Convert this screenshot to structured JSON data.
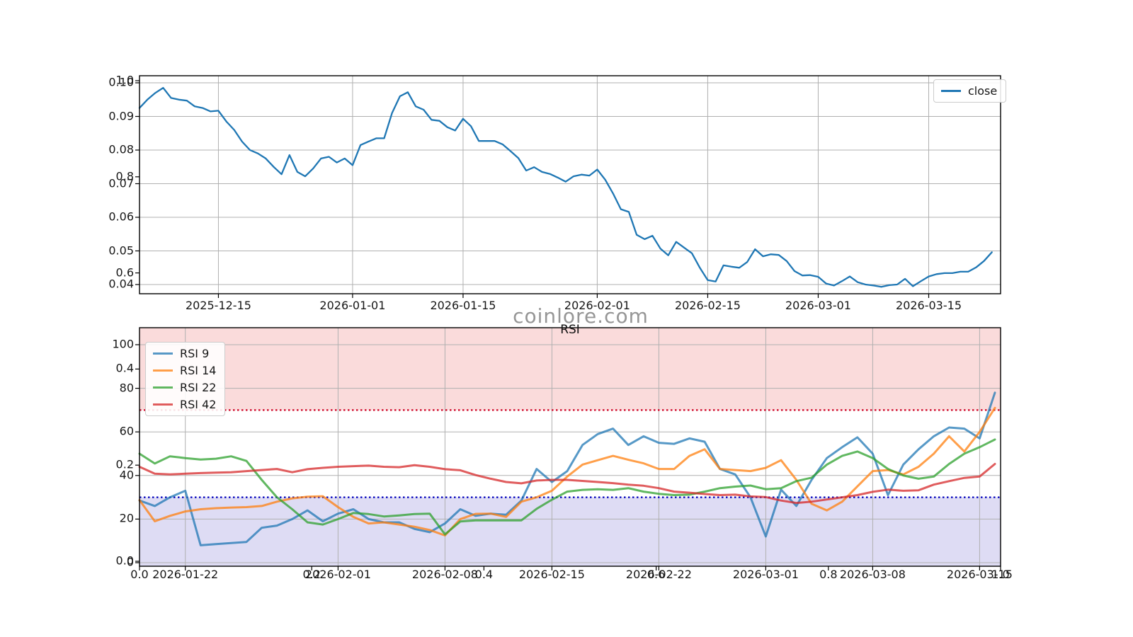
{
  "watermark": {
    "text": "coinlore.com",
    "color": "#969696"
  },
  "colors": {
    "price_line": "#1f77b4",
    "rsi9": "#1f77b4",
    "rsi14": "#ff7f0e",
    "rsi22": "#2ca02c",
    "rsi42": "#d62728",
    "overbought_line": "#cc0022",
    "oversold_line": "#0000bb",
    "overbought_band": "#fadbdb",
    "oversold_band": "#dedcf4",
    "grid": "#b0b0b0"
  },
  "chart_data": [
    {
      "type": "line",
      "title": "",
      "x_start_date": "2025-12-05",
      "x_axis": {
        "ticks": [
          "2025-12-15",
          "2026-01-01",
          "2026-01-15",
          "2026-02-01",
          "2026-02-15",
          "2026-03-01",
          "2026-03-15"
        ],
        "tick_day_offsets": [
          10,
          27,
          41,
          58,
          72,
          86,
          100
        ]
      },
      "y_axis": {
        "ticks": [
          "0.04",
          "0.05",
          "0.06",
          "0.07",
          "0.08",
          "0.09",
          "0.10"
        ],
        "tick_values": [
          0.04,
          0.05,
          0.06,
          0.07,
          0.08,
          0.09,
          0.1
        ]
      },
      "overlay_axis_y_labels": [
        "1.0",
        "0.8",
        "0.6"
      ],
      "legend": [
        "close"
      ],
      "grid": true,
      "legend_position": "upper right",
      "series": [
        {
          "name": "close",
          "color": "#1f77b4",
          "values": [
            0.0925,
            0.095,
            0.097,
            0.0985,
            0.0955,
            0.095,
            0.0947,
            0.093,
            0.0925,
            0.0915,
            0.0917,
            0.0885,
            0.086,
            0.0825,
            0.08,
            0.079,
            0.0775,
            0.075,
            0.0728,
            0.0785,
            0.0735,
            0.0722,
            0.0745,
            0.0775,
            0.078,
            0.0763,
            0.0775,
            0.0755,
            0.0815,
            0.0825,
            0.0835,
            0.0835,
            0.091,
            0.096,
            0.0972,
            0.093,
            0.092,
            0.089,
            0.0887,
            0.0868,
            0.0858,
            0.0893,
            0.0871,
            0.0827,
            0.0827,
            0.0827,
            0.0817,
            0.0797,
            0.0776,
            0.0739,
            0.0749,
            0.0735,
            0.0729,
            0.0718,
            0.0706,
            0.0722,
            0.0727,
            0.0724,
            0.0742,
            0.0712,
            0.0671,
            0.0624,
            0.0616,
            0.0548,
            0.0535,
            0.0545,
            0.0507,
            0.0487,
            0.0527,
            0.051,
            0.0493,
            0.045,
            0.0413,
            0.0409,
            0.0457,
            0.0453,
            0.045,
            0.0467,
            0.0505,
            0.0484,
            0.049,
            0.0488,
            0.047,
            0.044,
            0.0427,
            0.0428,
            0.0423,
            0.0403,
            0.0397,
            0.041,
            0.0424,
            0.0407,
            0.04,
            0.0397,
            0.0393,
            0.0398,
            0.04,
            0.0417,
            0.0395,
            0.041,
            0.0424,
            0.0431,
            0.0434,
            0.0434,
            0.0438,
            0.0438,
            0.0451,
            0.047,
            0.0496
          ]
        }
      ]
    },
    {
      "type": "line",
      "title": "RSI",
      "x_start_date": "2026-01-19",
      "x_axis": {
        "ticks": [
          "2026-01-22",
          "2026-02-01",
          "2026-02-08",
          "2026-02-15",
          "2026-02-22",
          "2026-03-01",
          "2026-03-08",
          "2026-03-15"
        ],
        "tick_indices": [
          3,
          13,
          20,
          27,
          34,
          41,
          48,
          55
        ]
      },
      "y_axis": {
        "ticks": [
          "0",
          "20",
          "40",
          "60",
          "80",
          "100"
        ],
        "tick_values": [
          0,
          20,
          40,
          60,
          80,
          100
        ]
      },
      "overlay_axis_y_labels": [
        "0.4",
        "0.2",
        "0.0"
      ],
      "overlay_axis_x_labels": [
        "0.0",
        "0.2",
        "0.4",
        "0.6",
        "0.8",
        "1.0"
      ],
      "hlines": [
        {
          "value": 70,
          "color": "#cc0022",
          "style": "dotted"
        },
        {
          "value": 30,
          "color": "#0000bb",
          "style": "dotted"
        }
      ],
      "bands": [
        {
          "from": 70,
          "to": 108,
          "color": "#fadbdb",
          "name": "overbought"
        },
        {
          "from": -2,
          "to": 30,
          "color": "#dedcf4",
          "name": "oversold"
        }
      ],
      "legend": [
        "RSI 9",
        "RSI 14",
        "RSI 22",
        "RSI 42"
      ],
      "grid": true,
      "legend_position": "upper left",
      "series": [
        {
          "name": "RSI 9",
          "color": "#1f77b4",
          "values": [
            28.5,
            26,
            30,
            33,
            8,
            8.5,
            9,
            9.5,
            16,
            17,
            20,
            24,
            19,
            22.5,
            24.5,
            20,
            18.5,
            18.5,
            15.5,
            14,
            18,
            24.5,
            21.5,
            22.5,
            22,
            28.5,
            43,
            37,
            42,
            54,
            59,
            61.5,
            54,
            58,
            55,
            54.5,
            57,
            55.5,
            43,
            40.5,
            30,
            12,
            33.5,
            26,
            38,
            48,
            53,
            57.5,
            50,
            31,
            45,
            52,
            58,
            62,
            61.5,
            57,
            78
          ]
        },
        {
          "name": "RSI 14",
          "color": "#ff7f0e",
          "values": [
            28.7,
            19,
            21.5,
            23.5,
            24.5,
            25,
            25.3,
            25.5,
            26,
            28,
            29.5,
            30.3,
            30.5,
            25.5,
            21,
            18,
            18.5,
            17.5,
            16.5,
            15,
            12.5,
            20,
            22.4,
            22.5,
            21,
            28,
            30,
            33,
            39.5,
            45,
            47,
            49,
            47.2,
            45.6,
            43,
            43,
            49,
            52,
            43,
            42.5,
            42,
            43.5,
            47,
            38,
            27,
            24,
            28,
            35,
            42,
            42.5,
            40.5,
            44,
            50,
            58,
            51,
            60,
            71
          ]
        },
        {
          "name": "RSI 22",
          "color": "#2ca02c",
          "values": [
            50,
            45.5,
            48.8,
            48,
            47.3,
            47.7,
            48.8,
            46.7,
            38,
            30,
            24.5,
            18.5,
            17.5,
            20,
            22.8,
            22.3,
            21.2,
            21.7,
            22.3,
            22.5,
            13,
            18.9,
            19.4,
            19.4,
            19.4,
            19.4,
            24.7,
            28.9,
            32.6,
            33.4,
            33.7,
            33.4,
            34.2,
            32.6,
            31.6,
            31,
            31.2,
            32.6,
            34.2,
            34.9,
            35.4,
            33.7,
            34.2,
            37.4,
            39,
            45,
            49,
            51,
            48,
            43,
            40,
            38.5,
            39.5,
            45.3,
            50,
            53,
            56.5
          ]
        },
        {
          "name": "RSI 42",
          "color": "#d62728",
          "values": [
            44,
            40.8,
            40.5,
            40.8,
            41.1,
            41.3,
            41.5,
            42,
            42.5,
            43,
            41.5,
            42.9,
            43.5,
            44,
            44.3,
            44.5,
            44,
            43.8,
            44.7,
            44,
            42.9,
            42.4,
            40.2,
            38.5,
            37,
            36.4,
            37.7,
            38,
            38,
            37.5,
            37,
            36.5,
            35.8,
            35.3,
            34.2,
            32.6,
            32.1,
            31.5,
            31,
            31.2,
            30.4,
            30.1,
            28.5,
            27.4,
            28,
            29,
            30,
            31,
            32.5,
            33.5,
            33,
            33.2,
            35.8,
            37.4,
            38.9,
            39.5,
            45.3
          ]
        }
      ]
    }
  ]
}
